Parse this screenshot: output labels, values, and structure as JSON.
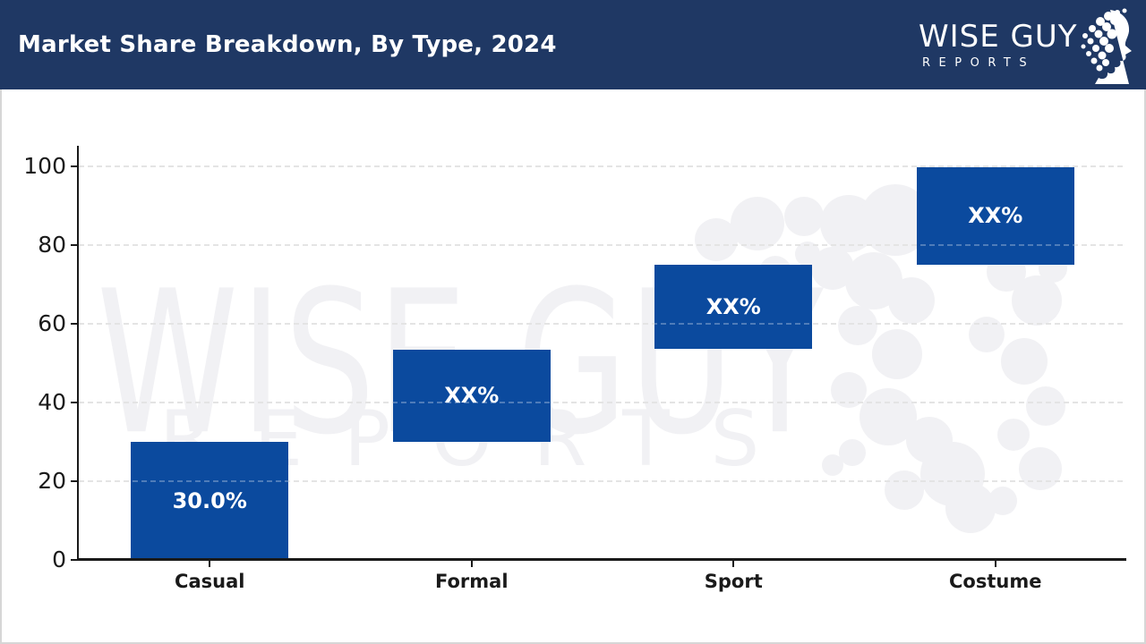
{
  "header": {
    "title": "Market Share Breakdown, By Type, 2024",
    "logo": {
      "line1": "WISE GUY",
      "line2": "REPORTS"
    }
  },
  "watermark": {
    "line1": "WISE GUY",
    "line2": "REPORTS"
  },
  "chart_data": {
    "type": "bar",
    "subtype": "waterfall",
    "title": "Market Share Breakdown, By Type, 2024",
    "categories": [
      "Casual",
      "Formal",
      "Sport",
      "Costume"
    ],
    "segments": [
      {
        "category": "Casual",
        "start": 0,
        "end": 30.0,
        "label": "30.0%"
      },
      {
        "category": "Formal",
        "start": 30.0,
        "end": 53.4,
        "label": "XX%"
      },
      {
        "category": "Sport",
        "start": 53.6,
        "end": 74.9,
        "label": "XX%"
      },
      {
        "category": "Costume",
        "start": 74.9,
        "end": 99.7,
        "label": "XX%"
      }
    ],
    "yticks": [
      0,
      20,
      40,
      60,
      80,
      100
    ],
    "ylim": [
      0,
      105
    ],
    "xlabel": "",
    "ylabel": "",
    "grid": "horizontal-dashed",
    "legend": "none",
    "bar_color": "#0b4a9e",
    "bar_label_color": "#ffffff"
  },
  "colors": {
    "header_bg": "#1f3864",
    "header_text": "#ffffff",
    "bar": "#0b4a9e",
    "grid": "#d9d9d9",
    "axis": "#1a1a1a",
    "watermark": "#f1f1f4",
    "page_bg": "#ffffff",
    "frame_border": "#d6d6d6"
  }
}
